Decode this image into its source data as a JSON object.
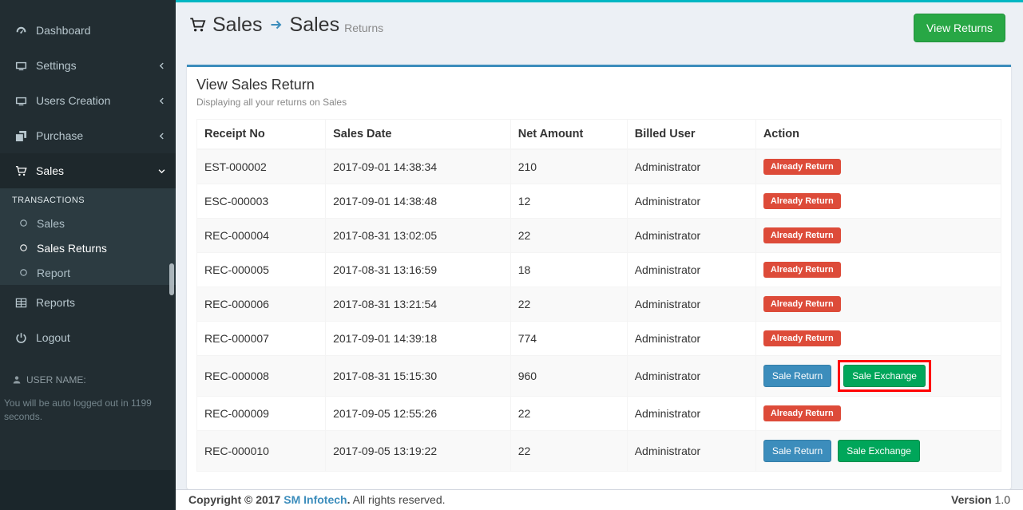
{
  "colors": {
    "top_strip": "#00b7c3",
    "primary_blue": "#3c8dbc",
    "success_green": "#00a65a",
    "danger_red": "#dd4b39",
    "view_returns_green": "#28a745",
    "highlight_red": "#ff0000",
    "sidebar_bg": "#222d32"
  },
  "sidebar": {
    "items": [
      {
        "type": "item",
        "label": "Dashboard",
        "icon": "dashboard-icon"
      },
      {
        "type": "item",
        "label": "Settings",
        "icon": "monitor-icon",
        "chevron": "left"
      },
      {
        "type": "item",
        "label": "Users Creation",
        "icon": "monitor-icon",
        "chevron": "left"
      },
      {
        "type": "item",
        "label": "Purchase",
        "icon": "copy-icon",
        "chevron": "left"
      },
      {
        "type": "item",
        "label": "Sales",
        "icon": "cart-icon",
        "chevron": "down",
        "active": true
      },
      {
        "type": "section",
        "label": "TRANSACTIONS"
      },
      {
        "type": "subitem",
        "label": "Sales",
        "icon": "circle-o-icon"
      },
      {
        "type": "subitem",
        "label": "Sales Returns",
        "icon": "circle-o-icon",
        "active": true
      },
      {
        "type": "subitem",
        "label": "Report",
        "icon": "circle-o-icon"
      },
      {
        "type": "item",
        "label": "Reports",
        "icon": "table-icon"
      },
      {
        "type": "item",
        "label": "Logout",
        "icon": "power-icon"
      }
    ],
    "user_label": "USER NAME:",
    "user_icon": "user-icon",
    "logout_note": "You will be auto logged out in 1199 seconds."
  },
  "header": {
    "cart_icon": "cart-icon",
    "title_primary": "Sales",
    "arrow_icon": "arrow-right-icon",
    "title_secondary": "Sales",
    "title_sub": "Returns",
    "view_returns_label": "View Returns"
  },
  "panel": {
    "title": "View Sales Return",
    "subtitle": "Displaying all your returns on Sales"
  },
  "table": {
    "columns": [
      "Receipt No",
      "Sales Date",
      "Net Amount",
      "Billed User",
      "Action"
    ],
    "action_labels": {
      "already_return": "Already Return",
      "sale_return": "Sale Return",
      "sale_exchange": "Sale Exchange"
    },
    "rows": [
      {
        "receipt_no": "EST-000002",
        "sales_date": "2017-09-01 14:38:34",
        "net_amount": "210",
        "billed_user": "Administrator",
        "action": "already_return"
      },
      {
        "receipt_no": "ESC-000003",
        "sales_date": "2017-09-01 14:38:48",
        "net_amount": "12",
        "billed_user": "Administrator",
        "action": "already_return"
      },
      {
        "receipt_no": "REC-000004",
        "sales_date": "2017-08-31 13:02:05",
        "net_amount": "22",
        "billed_user": "Administrator",
        "action": "already_return"
      },
      {
        "receipt_no": "REC-000005",
        "sales_date": "2017-08-31 13:16:59",
        "net_amount": "18",
        "billed_user": "Administrator",
        "action": "already_return"
      },
      {
        "receipt_no": "REC-000006",
        "sales_date": "2017-08-31 13:21:54",
        "net_amount": "22",
        "billed_user": "Administrator",
        "action": "already_return"
      },
      {
        "receipt_no": "REC-000007",
        "sales_date": "2017-09-01 14:39:18",
        "net_amount": "774",
        "billed_user": "Administrator",
        "action": "already_return"
      },
      {
        "receipt_no": "REC-000008",
        "sales_date": "2017-08-31 15:15:30",
        "net_amount": "960",
        "billed_user": "Administrator",
        "action": "return_exchange",
        "highlight_exchange": true
      },
      {
        "receipt_no": "REC-000009",
        "sales_date": "2017-09-05 12:55:26",
        "net_amount": "22",
        "billed_user": "Administrator",
        "action": "already_return"
      },
      {
        "receipt_no": "REC-000010",
        "sales_date": "2017-09-05 13:19:22",
        "net_amount": "22",
        "billed_user": "Administrator",
        "action": "return_exchange"
      }
    ]
  },
  "footer": {
    "copyright_prefix": "Copyright © 2017 ",
    "brand": "SM Infotech",
    "after_brand": ".",
    "rights": " All rights reserved.",
    "version_label": "Version",
    "version_value": " 1.0"
  }
}
